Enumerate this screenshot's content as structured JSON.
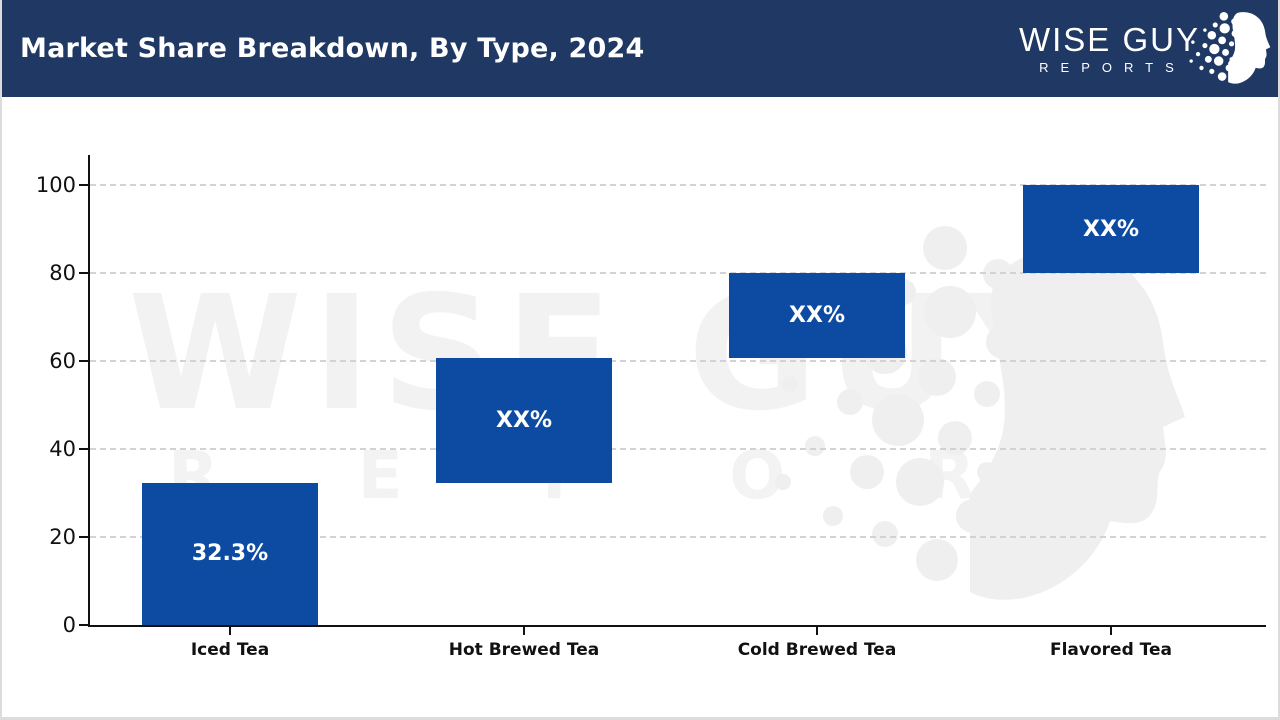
{
  "header": {
    "title": "Market Share Breakdown, By Type, 2024",
    "logo": {
      "line1": "WISE GUY",
      "line2": "REPORTS"
    }
  },
  "watermark": {
    "line1": "WISE GUY",
    "line2": "R E P O R T S"
  },
  "theme": {
    "header_bg": "#1f3864",
    "bar_color": "#0d4ba3",
    "grid_color": "#d2d2d2",
    "axis_color": "#111111"
  },
  "chart_data": {
    "type": "bar",
    "subtype": "waterfall",
    "title": "Market Share Breakdown, By Type, 2024",
    "xlabel": "",
    "ylabel": "",
    "categories": [
      "Iced Tea",
      "Hot Brewed Tea",
      "Cold Brewed Tea",
      "Flavored Tea"
    ],
    "segments": [
      {
        "category": "Iced Tea",
        "start": 0,
        "end": 32.3,
        "label": "32.3%"
      },
      {
        "category": "Hot Brewed Tea",
        "start": 32.3,
        "end": 60.7,
        "label": "XX%"
      },
      {
        "category": "Cold Brewed Tea",
        "start": 60.7,
        "end": 80,
        "label": "XX%"
      },
      {
        "category": "Flavored Tea",
        "start": 80,
        "end": 100,
        "label": "XX%"
      }
    ],
    "y_ticks": [
      0,
      20,
      40,
      60,
      80,
      100
    ],
    "ylim": [
      0,
      107
    ],
    "grid": "horizontal-dashed",
    "legend": "none"
  }
}
